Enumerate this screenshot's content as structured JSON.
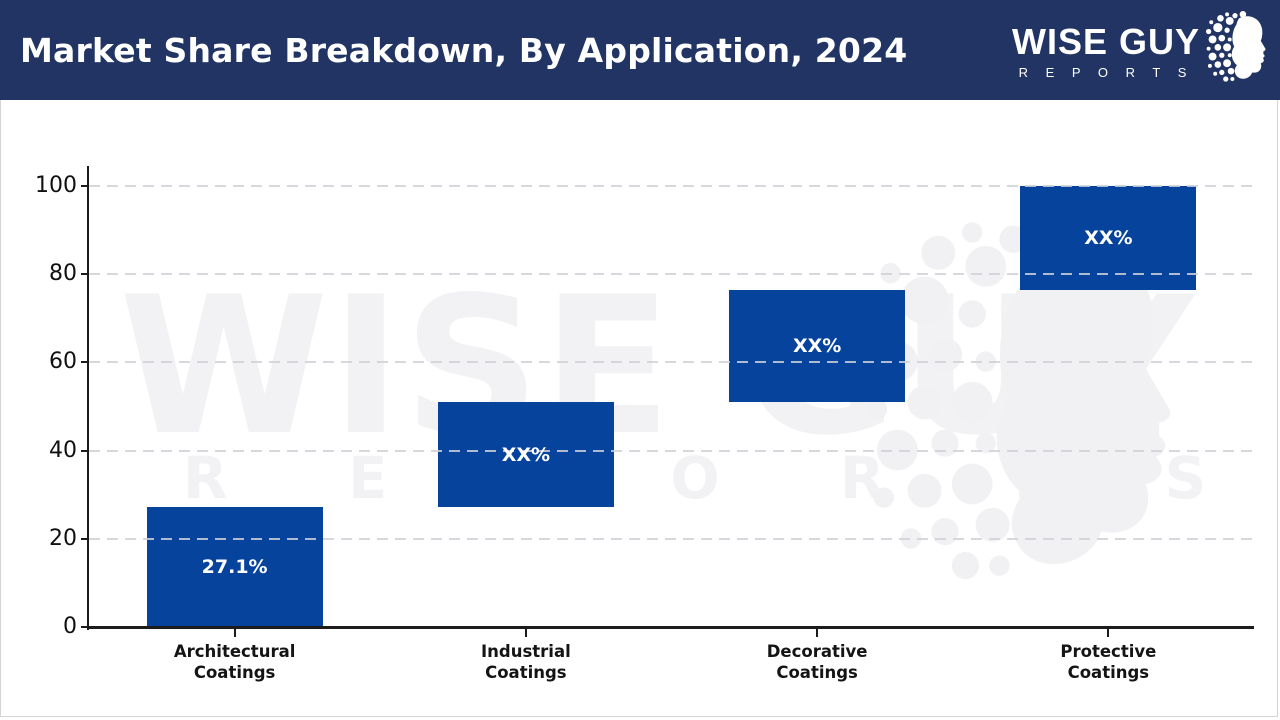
{
  "header": {
    "title": "Market Share Breakdown, By Application, 2024",
    "brand": {
      "name": "WISE GUY",
      "sub": "R E P O R T S"
    }
  },
  "watermark": {
    "line1": "WISE GUY",
    "line2": "R E P O R T S"
  },
  "colors": {
    "header_background": "#213463",
    "bar": "#06439d",
    "bar_label_text": "#ffffff",
    "axis": "#1c1c1c",
    "gridline": "#ced1d7",
    "watermark": "#f2f2f4"
  },
  "chart_data": {
    "type": "bar",
    "subtype": "floating_segment_waterfall",
    "title": "Market Share Breakdown, By Application, 2024",
    "xlabel": "",
    "ylabel": "",
    "ylim": [
      0,
      100
    ],
    "yticks": [
      0,
      20,
      40,
      60,
      80,
      100
    ],
    "grid": "horizontal dashed",
    "legend": "none",
    "categories": [
      "Architectural\nCoatings",
      "Industrial\nCoatings",
      "Decorative\nCoatings",
      "Protective\nCoatings"
    ],
    "segments": [
      {
        "category": [
          "Architectural",
          "Coatings"
        ],
        "start": 0,
        "end": 27.1,
        "label": "27.1%"
      },
      {
        "category": [
          "Industrial",
          "Coatings"
        ],
        "start": 27.1,
        "end": 51.0,
        "label": "XX%"
      },
      {
        "category": [
          "Decorative",
          "Coatings"
        ],
        "start": 51.0,
        "end": 76.4,
        "label": "XX%"
      },
      {
        "category": [
          "Protective",
          "Coatings"
        ],
        "start": 76.4,
        "end": 100,
        "label": "XX%"
      }
    ]
  }
}
